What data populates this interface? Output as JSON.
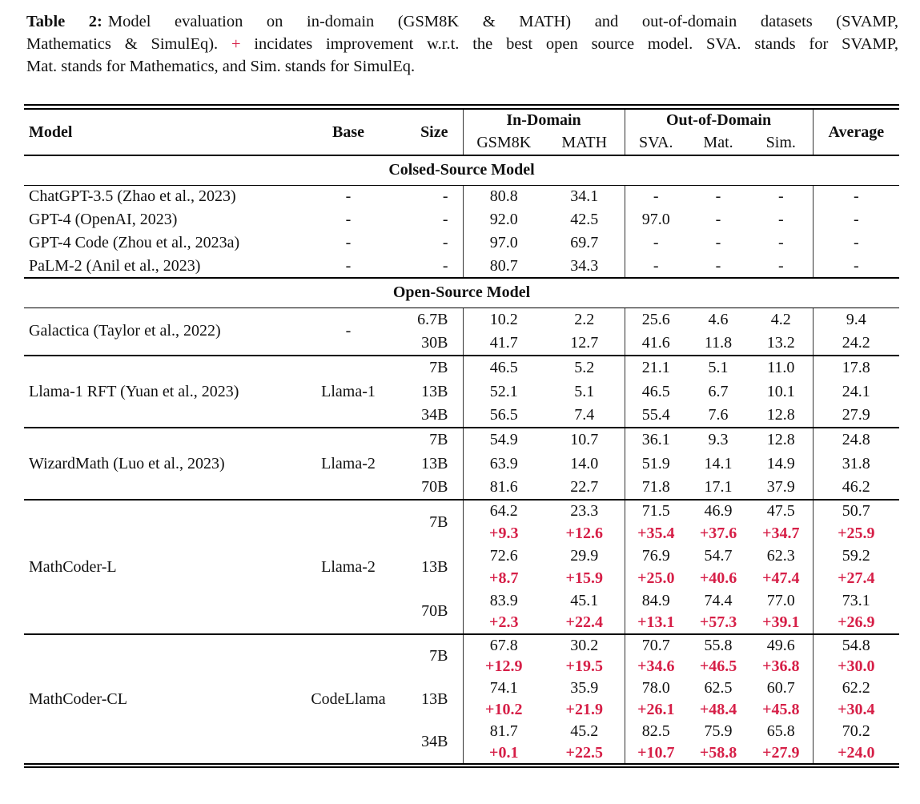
{
  "caption": {
    "line1_label": "Table 2:",
    "line1_text": "Model evaluation on in-domain (GSM8K & MATH) and out-of-domain datasets (SVAMP,",
    "line2_before_plus": "Mathematics & SimulEq). ",
    "plus_sign": "+",
    "line2_after_plus": " incidates improvement w.r.t. the best open source model. SVA. stands for SVAMP,",
    "line3": "Mat. stands for Mathematics, and Sim. stands for SimulEq."
  },
  "colors": {
    "accent_red": "#d61f47",
    "text": "#111111",
    "rule": "#000000"
  },
  "table": {
    "header": {
      "model": "Model",
      "base": "Base",
      "size": "Size",
      "in_domain": "In-Domain",
      "out_of_domain": "Out-of-Domain",
      "average": "Average",
      "gsm8k": "GSM8K",
      "math": "MATH",
      "sva": "SVA.",
      "mat": "Mat.",
      "sim": "Sim."
    },
    "sections": [
      {
        "title": "Colsed-Source Model",
        "groups": [
          {
            "model": "ChatGPT-3.5 (Zhao et al., 2023)",
            "base": "-",
            "rows": [
              {
                "size": "-",
                "values": [
                  "80.8",
                  "34.1",
                  "-",
                  "-",
                  "-",
                  "-"
                ]
              }
            ]
          },
          {
            "model": "GPT-4 (OpenAI, 2023)",
            "base": "-",
            "rows": [
              {
                "size": "-",
                "values": [
                  "92.0",
                  "42.5",
                  "97.0",
                  "-",
                  "-",
                  "-"
                ]
              }
            ]
          },
          {
            "model": "GPT-4 Code (Zhou et al., 2023a)",
            "base": "-",
            "rows": [
              {
                "size": "-",
                "values": [
                  "97.0",
                  "69.7",
                  "-",
                  "-",
                  "-",
                  "-"
                ]
              }
            ]
          },
          {
            "model": "PaLM-2 (Anil et al., 2023)",
            "base": "-",
            "rows": [
              {
                "size": "-",
                "values": [
                  "80.7",
                  "34.3",
                  "-",
                  "-",
                  "-",
                  "-"
                ]
              }
            ]
          }
        ]
      },
      {
        "title": "Open-Source Model",
        "groups": [
          {
            "model": "Galactica (Taylor et al., 2022)",
            "base": "-",
            "rows": [
              {
                "size": "6.7B",
                "values": [
                  "10.2",
                  "2.2",
                  "25.6",
                  "4.6",
                  "4.2",
                  "9.4"
                ]
              },
              {
                "size": "30B",
                "values": [
                  "41.7",
                  "12.7",
                  "41.6",
                  "11.8",
                  "13.2",
                  "24.2"
                ]
              }
            ]
          },
          {
            "model": "Llama-1 RFT (Yuan et al., 2023)",
            "base": "Llama-1",
            "rows": [
              {
                "size": "7B",
                "values": [
                  "46.5",
                  "5.2",
                  "21.1",
                  "5.1",
                  "11.0",
                  "17.8"
                ]
              },
              {
                "size": "13B",
                "values": [
                  "52.1",
                  "5.1",
                  "46.5",
                  "6.7",
                  "10.1",
                  "24.1"
                ]
              },
              {
                "size": "34B",
                "values": [
                  "56.5",
                  "7.4",
                  "55.4",
                  "7.6",
                  "12.8",
                  "27.9"
                ]
              }
            ]
          },
          {
            "model": "WizardMath (Luo et al., 2023)",
            "base": "Llama-2",
            "rows": [
              {
                "size": "7B",
                "values": [
                  "54.9",
                  "10.7",
                  "36.1",
                  "9.3",
                  "12.8",
                  "24.8"
                ]
              },
              {
                "size": "13B",
                "values": [
                  "63.9",
                  "14.0",
                  "51.9",
                  "14.1",
                  "14.9",
                  "31.8"
                ]
              },
              {
                "size": "70B",
                "values": [
                  "81.6",
                  "22.7",
                  "71.8",
                  "17.1",
                  "37.9",
                  "46.2"
                ]
              }
            ]
          },
          {
            "model": "MathCoder-L",
            "base": "Llama-2",
            "rows": [
              {
                "size": "7B",
                "values": [
                  "64.2",
                  "23.3",
                  "71.5",
                  "46.9",
                  "47.5",
                  "50.7"
                ],
                "improvements": [
                  "+9.3",
                  "+12.6",
                  "+35.4",
                  "+37.6",
                  "+34.7",
                  "+25.9"
                ]
              },
              {
                "size": "13B",
                "values": [
                  "72.6",
                  "29.9",
                  "76.9",
                  "54.7",
                  "62.3",
                  "59.2"
                ],
                "improvements": [
                  "+8.7",
                  "+15.9",
                  "+25.0",
                  "+40.6",
                  "+47.4",
                  "+27.4"
                ]
              },
              {
                "size": "70B",
                "values": [
                  "83.9",
                  "45.1",
                  "84.9",
                  "74.4",
                  "77.0",
                  "73.1"
                ],
                "improvements": [
                  "+2.3",
                  "+22.4",
                  "+13.1",
                  "+57.3",
                  "+39.1",
                  "+26.9"
                ]
              }
            ]
          },
          {
            "model": "MathCoder-CL",
            "base": "CodeLlama",
            "rows": [
              {
                "size": "7B",
                "values": [
                  "67.8",
                  "30.2",
                  "70.7",
                  "55.8",
                  "49.6",
                  "54.8"
                ],
                "improvements": [
                  "+12.9",
                  "+19.5",
                  "+34.6",
                  "+46.5",
                  "+36.8",
                  "+30.0"
                ]
              },
              {
                "size": "13B",
                "values": [
                  "74.1",
                  "35.9",
                  "78.0",
                  "62.5",
                  "60.7",
                  "62.2"
                ],
                "improvements": [
                  "+10.2",
                  "+21.9",
                  "+26.1",
                  "+48.4",
                  "+45.8",
                  "+30.4"
                ]
              },
              {
                "size": "34B",
                "values": [
                  "81.7",
                  "45.2",
                  "82.5",
                  "75.9",
                  "65.8",
                  "70.2"
                ],
                "improvements": [
                  "+0.1",
                  "+22.5",
                  "+10.7",
                  "+58.8",
                  "+27.9",
                  "+24.0"
                ]
              }
            ]
          }
        ]
      }
    ]
  }
}
